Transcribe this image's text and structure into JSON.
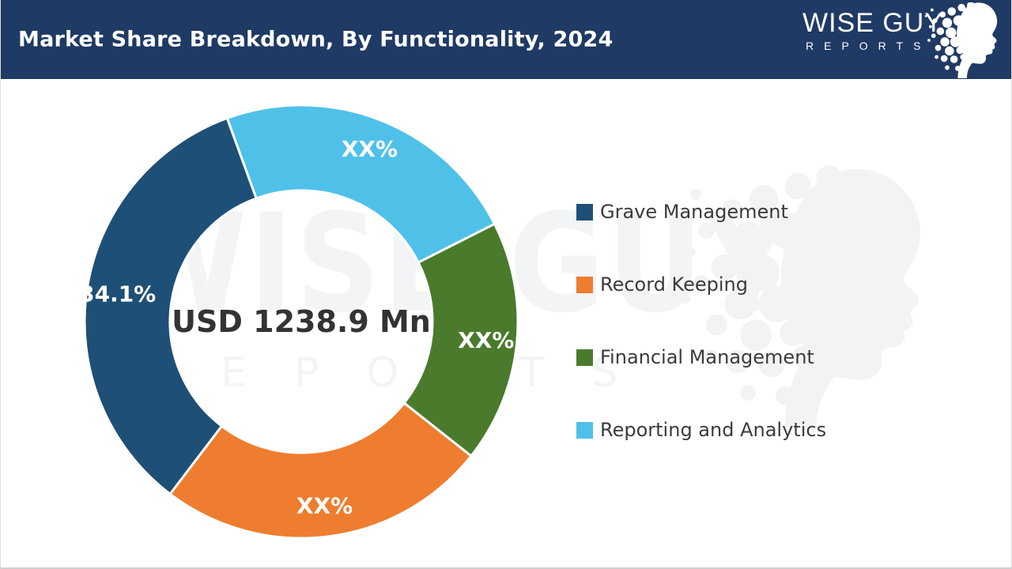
{
  "header": {
    "title": "Market Share Breakdown, By Functionality, 2024",
    "logo": {
      "line1": "WISE GUY",
      "line2": "REPORTS"
    }
  },
  "watermark": {
    "line1": "WISE GUY",
    "line2": "REPORTS"
  },
  "chart_data": {
    "type": "pie",
    "subtype": "donut",
    "title": "Market Share Breakdown, By Functionality, 2024",
    "center_label": "USD 1238.9 Mn",
    "start_angle_deg": -20,
    "direction": "counterclockwise",
    "legend_position": "right",
    "inner_radius_ratio": 0.6,
    "segments": [
      {
        "label": "Grave Management",
        "display_value": "34.1%",
        "value_pct": 34.1,
        "color": "#1E4F76"
      },
      {
        "label": "Record Keeping",
        "display_value": "XX%",
        "value_pct": 24.7,
        "color": "#EE7D2F"
      },
      {
        "label": "Financial Management",
        "display_value": "XX%",
        "value_pct": 18.1,
        "color": "#4A7A2B"
      },
      {
        "label": "Reporting and Analytics",
        "display_value": "XX%",
        "value_pct": 23.1,
        "color": "#4FC1E8"
      }
    ],
    "colors": {
      "header_bg": "#1F3A64",
      "center_text": "#333333",
      "legend_text": "#3b3b3b",
      "watermark": "#f3f4f6",
      "segment_label_text": "#ffffff"
    }
  }
}
